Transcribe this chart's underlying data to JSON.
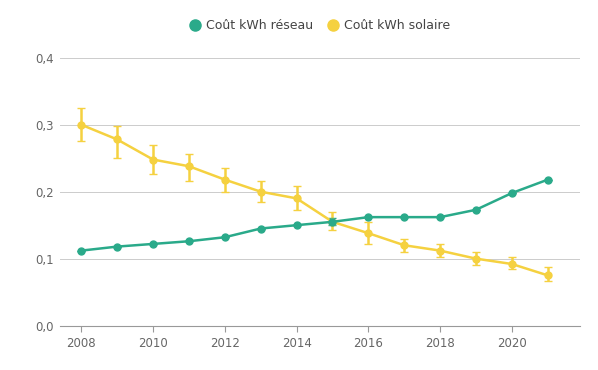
{
  "years": [
    2008,
    2009,
    2010,
    2011,
    2012,
    2013,
    2014,
    2015,
    2016,
    2017,
    2018,
    2019,
    2020,
    2021
  ],
  "reseau_y": [
    0.112,
    0.118,
    0.122,
    0.126,
    0.132,
    0.145,
    0.15,
    0.155,
    0.162,
    0.162,
    0.162,
    0.173,
    0.198,
    0.218
  ],
  "solaire_y": [
    0.3,
    0.278,
    0.248,
    0.238,
    0.218,
    0.2,
    0.19,
    0.155,
    0.138,
    0.12,
    0.112,
    0.1,
    0.092,
    0.075
  ],
  "solaire_yerr_upper": [
    0.025,
    0.02,
    0.022,
    0.018,
    0.018,
    0.016,
    0.018,
    0.015,
    0.016,
    0.01,
    0.01,
    0.01,
    0.01,
    0.012
  ],
  "solaire_yerr_lower": [
    0.025,
    0.028,
    0.022,
    0.022,
    0.018,
    0.016,
    0.018,
    0.012,
    0.016,
    0.01,
    0.01,
    0.01,
    0.008,
    0.008
  ],
  "reseau_yerr_upper": [
    0.0,
    0.0,
    0.0,
    0.0,
    0.0,
    0.0,
    0.0,
    0.005,
    0.0,
    0.0,
    0.0,
    0.0,
    0.0,
    0.0
  ],
  "reseau_yerr_lower": [
    0.0,
    0.0,
    0.0,
    0.0,
    0.0,
    0.0,
    0.0,
    0.005,
    0.0,
    0.0,
    0.0,
    0.0,
    0.0,
    0.0
  ],
  "reseau_color": "#2aaa8a",
  "solaire_color": "#f5d140",
  "reseau_label": "Coût kWh réseau",
  "solaire_label": "Coût kWh solaire",
  "ylim": [
    0.0,
    0.42
  ],
  "yticks": [
    0.0,
    0.1,
    0.2,
    0.3,
    0.4
  ],
  "ytick_labels": [
    "0,0",
    "0,1",
    "0,2",
    "0,3",
    "0,4"
  ],
  "xticks": [
    2008,
    2010,
    2012,
    2014,
    2016,
    2018,
    2020
  ],
  "background_color": "#ffffff",
  "grid_color": "#cccccc",
  "tick_label_color": "#666666",
  "tick_fontsize": 8.5
}
